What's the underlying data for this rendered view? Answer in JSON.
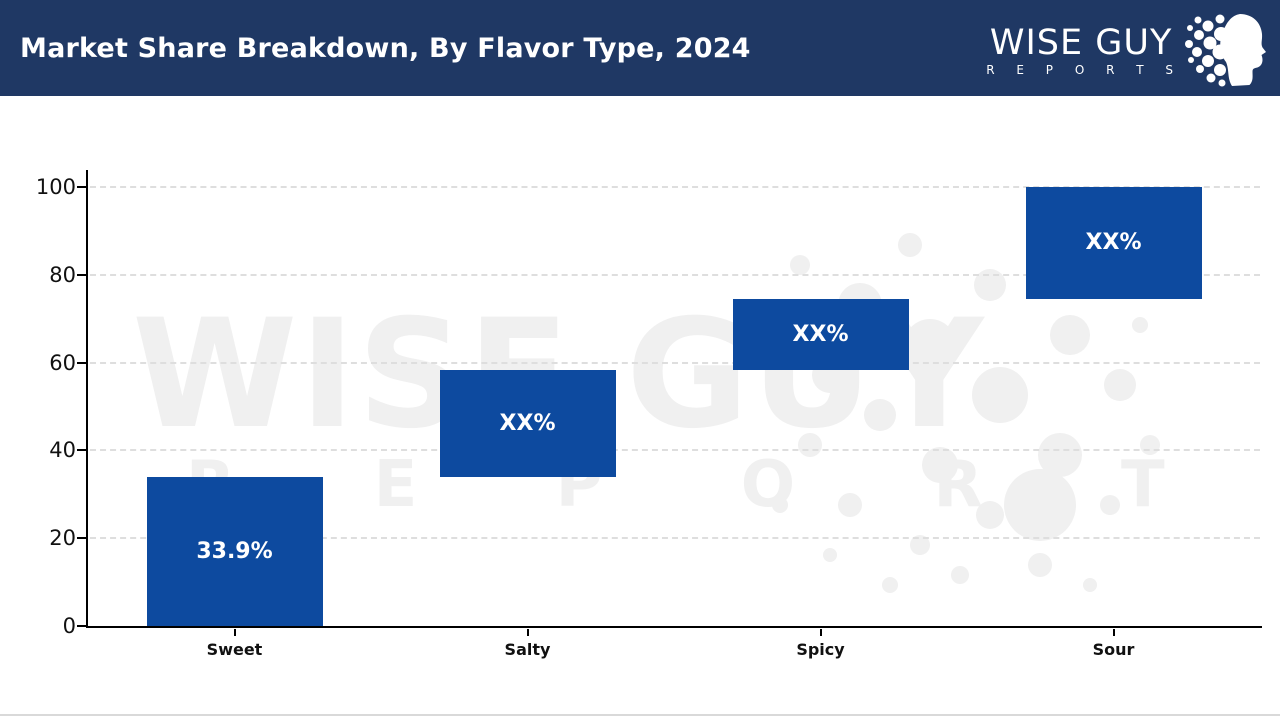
{
  "header": {
    "title": "Market Share Breakdown, By Flavor Type, 2024",
    "logo": {
      "name_line": "WISE GUY",
      "sub_line": "R E P O R T S"
    }
  },
  "watermark": {
    "name_line": "WISE GUY",
    "sub_line": "R E P O R T S"
  },
  "colors": {
    "header_bg": "#1f3864",
    "chart_bg": "#ffffff",
    "bar_fill": "#0d4a9f",
    "bar_label": "#ffffff",
    "grid_line": "#dedede",
    "axis_line": "#000000",
    "tick_label": "#111111",
    "watermark": "#f0f0f0",
    "baseline_rule": "#d9d9d9"
  },
  "chart_data": {
    "type": "bar",
    "variant": "floating-segment-breakdown",
    "title": "Market Share Breakdown, By Flavor Type, 2024",
    "categories": [
      "Sweet",
      "Salty",
      "Spicy",
      "Sour"
    ],
    "bars": [
      {
        "category": "Sweet",
        "start": 0,
        "end": 33.9,
        "value": 33.9,
        "label": "33.9%"
      },
      {
        "category": "Salty",
        "start": 33.9,
        "end": 58.3,
        "value": 24.4,
        "label": "XX%"
      },
      {
        "category": "Spicy",
        "start": 58.3,
        "end": 74.6,
        "value": 16.3,
        "label": "XX%"
      },
      {
        "category": "Sour",
        "start": 74.6,
        "end": 100,
        "value": 25.4,
        "label": "XX%"
      }
    ],
    "xlabel": "",
    "ylabel": "",
    "ylim": [
      0,
      104
    ],
    "yticks": [
      0,
      20,
      40,
      60,
      80,
      100
    ],
    "grid": "horizontal-dashed",
    "legend": "none"
  }
}
